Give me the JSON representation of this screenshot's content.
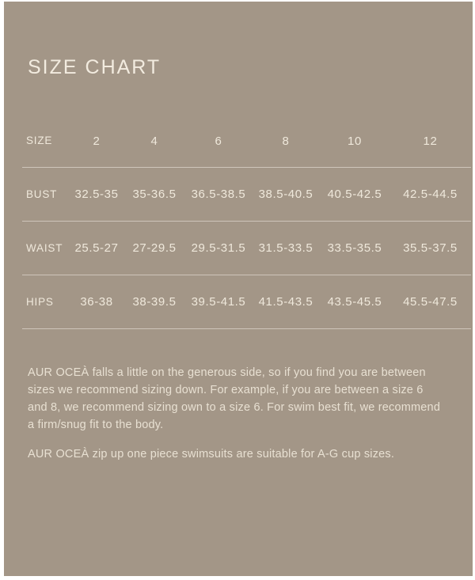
{
  "colors": {
    "background": "#a39687",
    "frame": "#ffffff",
    "text_cream": "#efe8db",
    "divider": "#e9e2d5"
  },
  "header": {
    "title": "SIZE CHART"
  },
  "chart_data": {
    "type": "table",
    "title": "SIZE CHART",
    "columns": [
      "SIZE",
      "2",
      "4",
      "6",
      "8",
      "10",
      "12"
    ],
    "rows": [
      {
        "label": "BUST",
        "values": [
          "32.5-35",
          "35-36.5",
          "36.5-38.5",
          "38.5-40.5",
          "40.5-42.5",
          "42.5-44.5"
        ]
      },
      {
        "label": "WAIST",
        "values": [
          "25.5-27",
          "27-29.5",
          "29.5-31.5",
          "31.5-33.5",
          "33.5-35.5",
          "35.5-37.5"
        ]
      },
      {
        "label": "HIPS",
        "values": [
          "36-38",
          "38-39.5",
          "39.5-41.5",
          "41.5-43.5",
          "43.5-45.5",
          "45.5-47.5"
        ]
      }
    ],
    "layout": {
      "grid": "horizontal-dividers-only",
      "header_position": "top"
    }
  },
  "notes": {
    "paragraph1": "AUR OCEÀ falls a little on the generous side, so if you find you are between sizes we recommend sizing down.  For example, if you are between a size 6 and 8, we recommend sizing own to a size 6. For swim best fit, we recommend a firm/snug fit to the body.",
    "paragraph2": "AUR OCEÀ zip up one piece swimsuits are suitable for A-G cup sizes."
  }
}
